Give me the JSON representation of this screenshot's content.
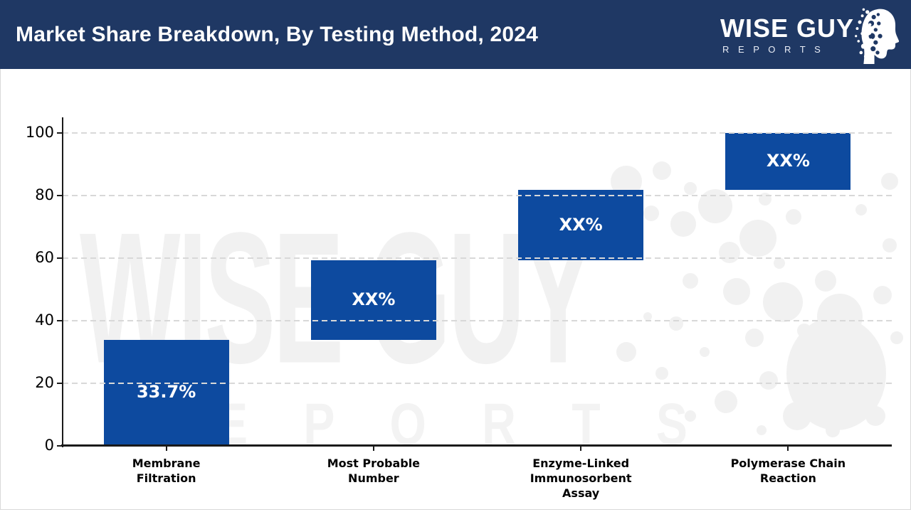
{
  "header": {
    "title": "Market Share Breakdown, By Testing Method, 2024",
    "logo": {
      "name": "WISE GUY",
      "sub": "R E P O R T S"
    }
  },
  "watermark": {
    "line1": "WISE GUY",
    "line2": "R E P O R T S"
  },
  "chart_data": {
    "type": "bar",
    "subtype": "floating-waterfall",
    "title": "Market Share Breakdown, By Testing Method, 2024",
    "categories": [
      "Membrane\nFiltration",
      "Most Probable\nNumber",
      "Enzyme-Linked\nImmunosorbent\nAssay",
      "Polymerase Chain\nReaction"
    ],
    "series": [
      {
        "name": "Market Share (%)",
        "segments": [
          {
            "category": "Membrane Filtration",
            "start": 0,
            "end": 33.7,
            "label": "33.7%"
          },
          {
            "category": "Most Probable Number",
            "start": 33.7,
            "end": 59.1,
            "label": "XX%"
          },
          {
            "category": "Enzyme-Linked Immunosorbent Assay",
            "start": 59.1,
            "end": 81.7,
            "label": "XX%"
          },
          {
            "category": "Polymerase Chain Reaction",
            "start": 81.7,
            "end": 100,
            "label": "XX%"
          }
        ]
      }
    ],
    "ylim": [
      0,
      100
    ],
    "yticks": [
      0,
      20,
      40,
      60,
      80,
      100
    ],
    "grid": "horizontal-dashed",
    "legend": "none",
    "colors": {
      "bar": "#0d4a9f",
      "bar_label": "#ffffff",
      "grid": "#d8d8d8",
      "axis": "#1a1a1a",
      "header_bg": "#1f3864",
      "watermark": "#f1f1f1"
    }
  }
}
